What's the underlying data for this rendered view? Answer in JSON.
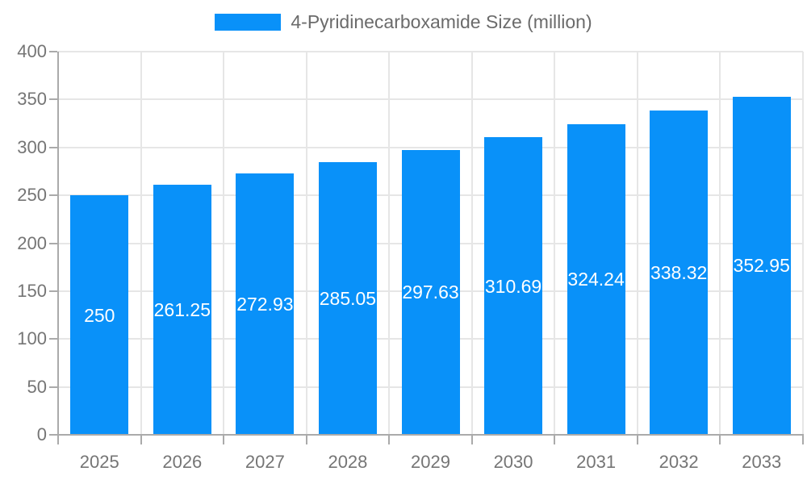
{
  "legend": {
    "label": "4-Pyridinecarboxamide Size (million)",
    "position": "top"
  },
  "chart_data": {
    "type": "bar",
    "title": "4-Pyridinecarboxamide Size (million)",
    "categories": [
      "2025",
      "2026",
      "2027",
      "2028",
      "2029",
      "2030",
      "2031",
      "2032",
      "2033"
    ],
    "values": [
      250,
      261.25,
      272.93,
      285.05,
      297.63,
      310.69,
      324.24,
      338.32,
      352.95
    ],
    "value_labels": [
      "250",
      "261.25",
      "272.93",
      "285.05",
      "297.63",
      "310.69",
      "324.24",
      "338.32",
      "352.95"
    ],
    "xlabel": "",
    "ylabel": "",
    "ylim": [
      0,
      400
    ],
    "ytick_step": 50,
    "yticks": [
      0,
      50,
      100,
      150,
      200,
      250,
      300,
      350,
      400
    ],
    "grid": "on",
    "legend_position": "top",
    "value_label_position": "center-of-bar"
  },
  "colors": {
    "bar": "#0991f9",
    "gridline": "#e6e6e6",
    "axis": "#aaaaaa",
    "tick_label": "#757575",
    "legend_text": "#6b6b6b",
    "value_label": "#ffffff",
    "background": "#ffffff"
  }
}
